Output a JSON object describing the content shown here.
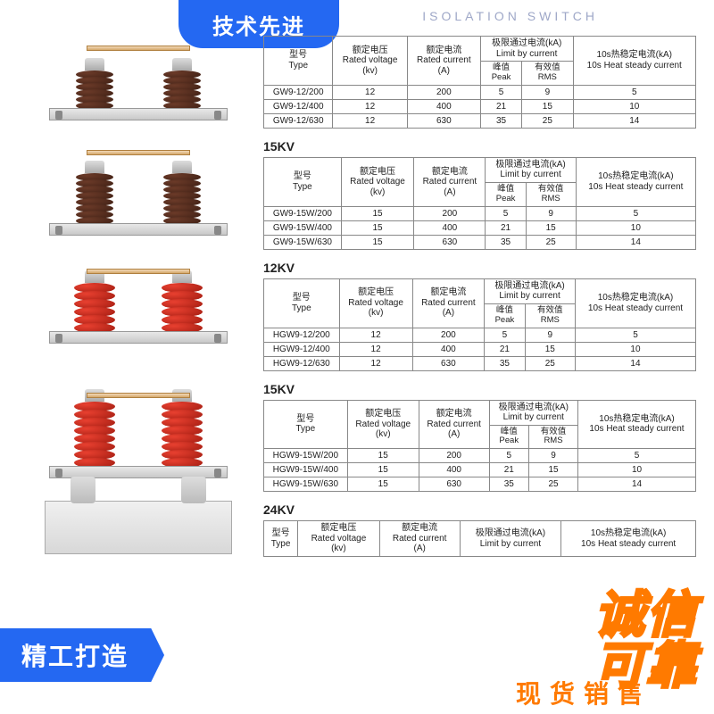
{
  "header": {
    "subtitle": "ISOLATION SWITCH"
  },
  "badges": {
    "top": "技术先进",
    "ribbon_left": "精工打造",
    "stamp_line1": "诚信",
    "stamp_line2": "可靠",
    "stamp_sub": "现货销售"
  },
  "columns": {
    "type": {
      "cn": "型号",
      "en": "Type"
    },
    "voltage": {
      "cn": "额定电压",
      "en": "Rated voltage",
      "unit": "(kv)"
    },
    "current": {
      "cn": "额定电流",
      "en": "Rated current",
      "unit": "(A)"
    },
    "limit": {
      "cn": "极限通过电流(kA)",
      "en": "Limit by current"
    },
    "peak": {
      "cn": "峰值",
      "en": "Peak"
    },
    "rms": {
      "cn": "有效值",
      "en": "RMS"
    },
    "heat": {
      "cn": "10s热稳定电流(kA)",
      "en": "10s Heat steady current"
    }
  },
  "sections": [
    {
      "title": "",
      "insulator_color": "brown",
      "rows": [
        {
          "type": "GW9-12/200",
          "kv": "12",
          "a": "200",
          "peak": "5",
          "rms": "9",
          "heat": "5"
        },
        {
          "type": "GW9-12/400",
          "kv": "12",
          "a": "400",
          "peak": "21",
          "rms": "15",
          "heat": "10"
        },
        {
          "type": "GW9-12/630",
          "kv": "12",
          "a": "630",
          "peak": "35",
          "rms": "25",
          "heat": "14"
        }
      ]
    },
    {
      "title": "15KV",
      "insulator_color": "brown",
      "rows": [
        {
          "type": "GW9-15W/200",
          "kv": "15",
          "a": "200",
          "peak": "5",
          "rms": "9",
          "heat": "5"
        },
        {
          "type": "GW9-15W/400",
          "kv": "15",
          "a": "400",
          "peak": "21",
          "rms": "15",
          "heat": "10"
        },
        {
          "type": "GW9-15W/630",
          "kv": "15",
          "a": "630",
          "peak": "35",
          "rms": "25",
          "heat": "14"
        }
      ]
    },
    {
      "title": "12KV",
      "insulator_color": "red",
      "rows": [
        {
          "type": "HGW9-12/200",
          "kv": "12",
          "a": "200",
          "peak": "5",
          "rms": "9",
          "heat": "5"
        },
        {
          "type": "HGW9-12/400",
          "kv": "12",
          "a": "400",
          "peak": "21",
          "rms": "15",
          "heat": "10"
        },
        {
          "type": "HGW9-12/630",
          "kv": "12",
          "a": "630",
          "peak": "35",
          "rms": "25",
          "heat": "14"
        }
      ]
    },
    {
      "title": "15KV",
      "insulator_color": "red",
      "rows": [
        {
          "type": "HGW9-15W/200",
          "kv": "15",
          "a": "200",
          "peak": "5",
          "rms": "9",
          "heat": "5"
        },
        {
          "type": "HGW9-15W/400",
          "kv": "15",
          "a": "400",
          "peak": "21",
          "rms": "15",
          "heat": "10"
        },
        {
          "type": "HGW9-15W/630",
          "kv": "15",
          "a": "630",
          "peak": "35",
          "rms": "25",
          "heat": "14"
        }
      ]
    },
    {
      "title": "24KV",
      "insulator_color": "partial",
      "rows": []
    }
  ],
  "style": {
    "accent": "#2468f2",
    "stamp_color": "#ff7a00",
    "border_color": "#888888",
    "text_color": "#222222"
  }
}
